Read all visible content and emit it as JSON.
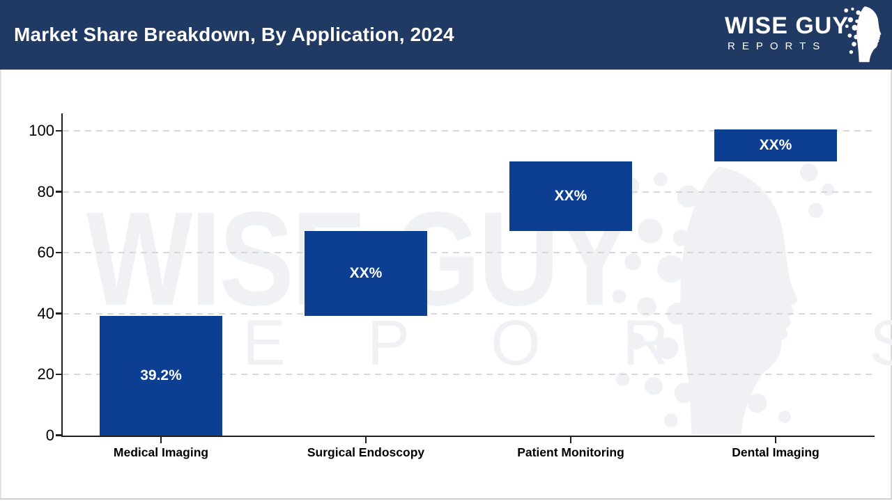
{
  "header": {
    "title": "Market Share Breakdown, By Application, 2024",
    "logo": {
      "line1": "WISE GUY",
      "line2": "REPORTS"
    }
  },
  "watermark": {
    "line1": "WISE GUY",
    "line2": "REPORTS"
  },
  "colors": {
    "header_bg": "#213a63",
    "bar": "#0c3e92",
    "bar_label": "#ffffff",
    "grid": "#d8d8d8",
    "axis": "#1f1f1f",
    "watermark": "#f0f1f4"
  },
  "chart_data": {
    "type": "bar",
    "subtype": "waterfall",
    "title": "Market Share Breakdown, By Application, 2024",
    "categories": [
      "Medical Imaging",
      "Surgical Endoscopy",
      "Patient Monitoring",
      "Dental Imaging"
    ],
    "segments": [
      {
        "category": "Medical Imaging",
        "start": 0,
        "end": 39.2,
        "label": "39.2%"
      },
      {
        "category": "Surgical Endoscopy",
        "start": 39.2,
        "end": 67.2,
        "label": "XX%"
      },
      {
        "category": "Patient Monitoring",
        "start": 67.2,
        "end": 89.9,
        "label": "XX%"
      },
      {
        "category": "Dental Imaging",
        "start": 89.9,
        "end": 100.5,
        "label": "XX%"
      }
    ],
    "y_ticks": [
      0,
      20,
      40,
      60,
      80,
      100
    ],
    "ylim": [
      0,
      105
    ],
    "xlabel": "",
    "ylabel": "",
    "grid": "horizontal-dashed",
    "legend": "none"
  }
}
